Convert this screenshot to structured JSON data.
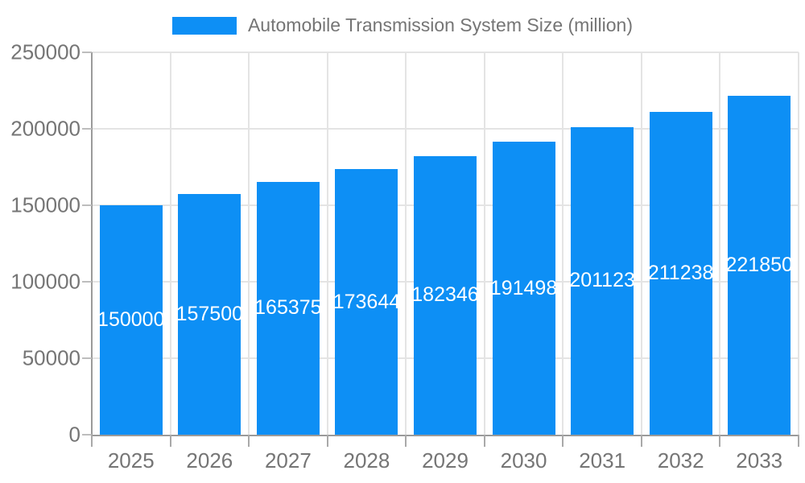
{
  "chart_data": {
    "type": "bar",
    "title": "Automobile Transmission System Size (million)",
    "legend": {
      "position": "top",
      "entries": [
        {
          "label": "Automobile Transmission System Size (million)",
          "color": "#0d8ff5"
        }
      ]
    },
    "categories": [
      "2025",
      "2026",
      "2027",
      "2028",
      "2029",
      "2030",
      "2031",
      "2032",
      "2033"
    ],
    "series": [
      {
        "name": "Automobile Transmission System Size (million)",
        "values": [
          150000,
          157500,
          165375,
          173644,
          182346,
          191498,
          201123,
          211238,
          221850
        ]
      }
    ],
    "bar_value_labels": [
      "150000",
      "157500",
      "165375",
      "173644",
      "182346",
      "191498",
      "201123",
      "211238",
      "221850"
    ],
    "xlabel": "",
    "ylabel": "",
    "ylim": [
      0,
      250000
    ],
    "yticks": [
      0,
      50000,
      100000,
      150000,
      200000,
      250000
    ],
    "ytick_labels": [
      "0",
      "50000",
      "100000",
      "150000",
      "200000",
      "250000"
    ],
    "grid": true,
    "bar_width_fraction": 0.8
  },
  "colors": {
    "bar": "#0d8ff5",
    "bar_label": "#ffffff",
    "axis_text": "#757575",
    "grid_line": "#e4e4e4",
    "axis_line": "#9a9a9a",
    "tick": "#ababab",
    "background": "#ffffff"
  }
}
